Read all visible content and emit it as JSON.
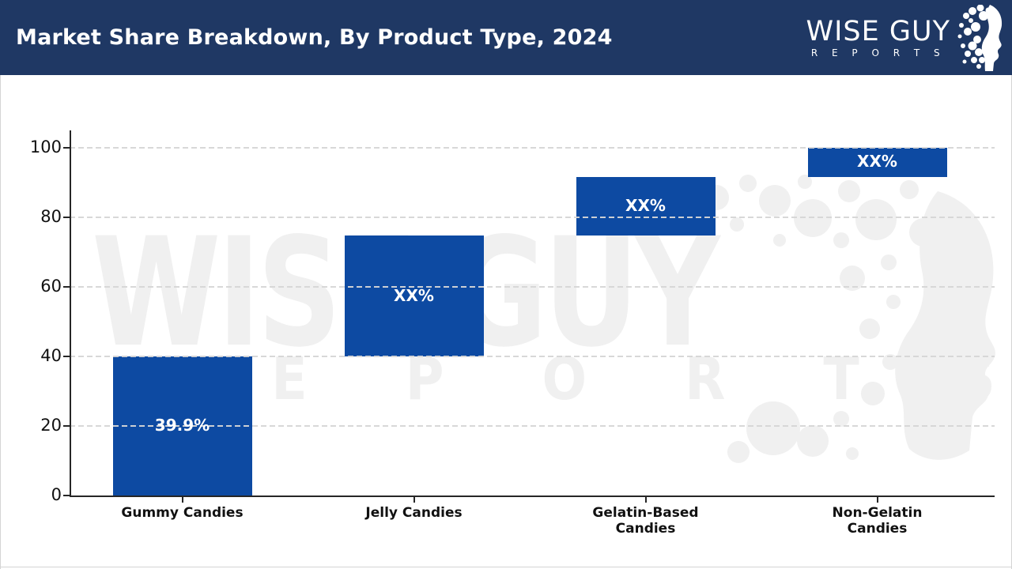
{
  "header": {
    "title": "Market Share Breakdown, By Product Type, 2024",
    "bg_color": "#1f3864",
    "logo": {
      "line1": "WISE GUY",
      "line2": "R E P O R T S"
    }
  },
  "watermark": {
    "line1": "WISE GUY",
    "line2": "R E P O R T S"
  },
  "chart_data": {
    "type": "bar",
    "subtype": "waterfall",
    "title": "Market Share Breakdown, By Product Type, 2024",
    "categories": [
      "Gummy Candies",
      "Jelly Candies",
      "Gelatin-Based\nCandies",
      "Non-Gelatin\nCandies"
    ],
    "segments": [
      {
        "category": "Gummy Candies",
        "start": 0,
        "end": 39.9,
        "label": "39.9%"
      },
      {
        "category": "Jelly Candies",
        "start": 39.9,
        "end": 74.8,
        "label": "XX%"
      },
      {
        "category": "Gelatin-Based\nCandies",
        "start": 74.8,
        "end": 91.6,
        "label": "XX%"
      },
      {
        "category": "Non-Gelatin\nCandies",
        "start": 91.6,
        "end": 100,
        "label": "XX%"
      }
    ],
    "xlabel": "",
    "ylabel": "",
    "ylim": [
      0,
      100
    ],
    "yticks": [
      0,
      20,
      40,
      60,
      80,
      100
    ],
    "grid": "horizontal dashed, drawn over bars",
    "legend": "none",
    "bar_color": "#0d4aa2",
    "label_color": "#ffffff"
  }
}
